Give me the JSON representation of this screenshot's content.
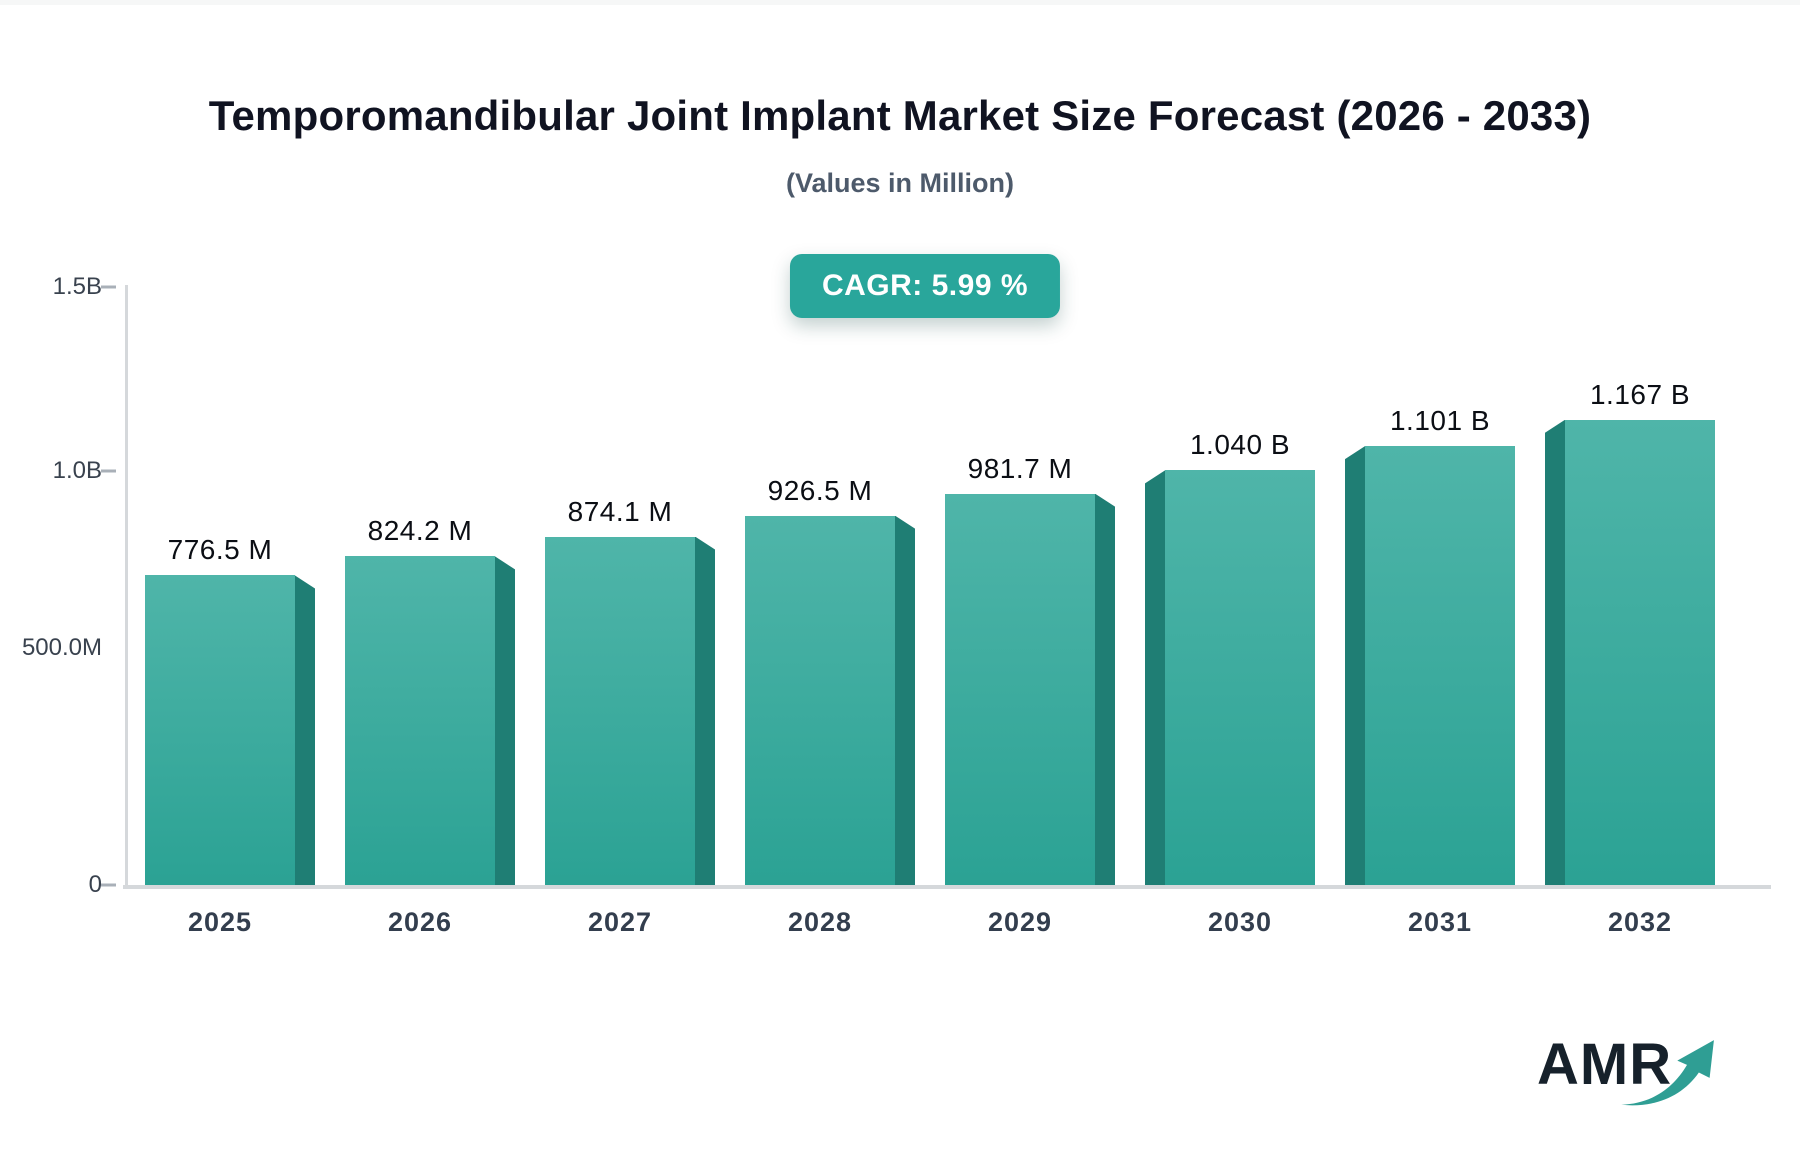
{
  "page": {
    "title": "Temporomandibular Joint Implant Market Size Forecast (2026 - 2033)",
    "subtitle": "(Values in Million)",
    "cagr_badge": "CAGR: 5.99 %"
  },
  "chart_data": {
    "type": "bar",
    "title": "Temporomandibular Joint Implant Market Size Forecast (2026 - 2033)",
    "subtitle": "(Values in Million)",
    "cagr_percent": 5.99,
    "categories": [
      "2025",
      "2026",
      "2027",
      "2028",
      "2029",
      "2030",
      "2031",
      "2032"
    ],
    "values_millions": [
      776.5,
      824.2,
      874.1,
      926.5,
      981.7,
      1040,
      1101,
      1167
    ],
    "bar_labels": [
      "776.5 M",
      "824.2 M",
      "874.1 M",
      "926.5 M",
      "981.7 M",
      "1.040 B",
      "1.101 B",
      "1.167 B"
    ],
    "y_tick_labels": [
      "1.5B",
      "1.0B",
      "500.0M",
      "0"
    ],
    "ylim": [
      0,
      1500
    ],
    "xlabel": "",
    "ylabel": "",
    "grid": "off",
    "legend": "none"
  },
  "logo": {
    "text": "AMR",
    "icon": "growth-arrow-icon"
  },
  "colors": {
    "accent_teal": "#29a69b",
    "bar_face_top": "#4fb5a9",
    "bar_face_bottom": "#2ba294",
    "bar_side": "#1f7e74",
    "axis_line": "#d5d8db",
    "title_text": "#101321",
    "subtitle_text": "#4d5a6b",
    "axis_text": "#39424e",
    "logo_text": "#16212b"
  }
}
